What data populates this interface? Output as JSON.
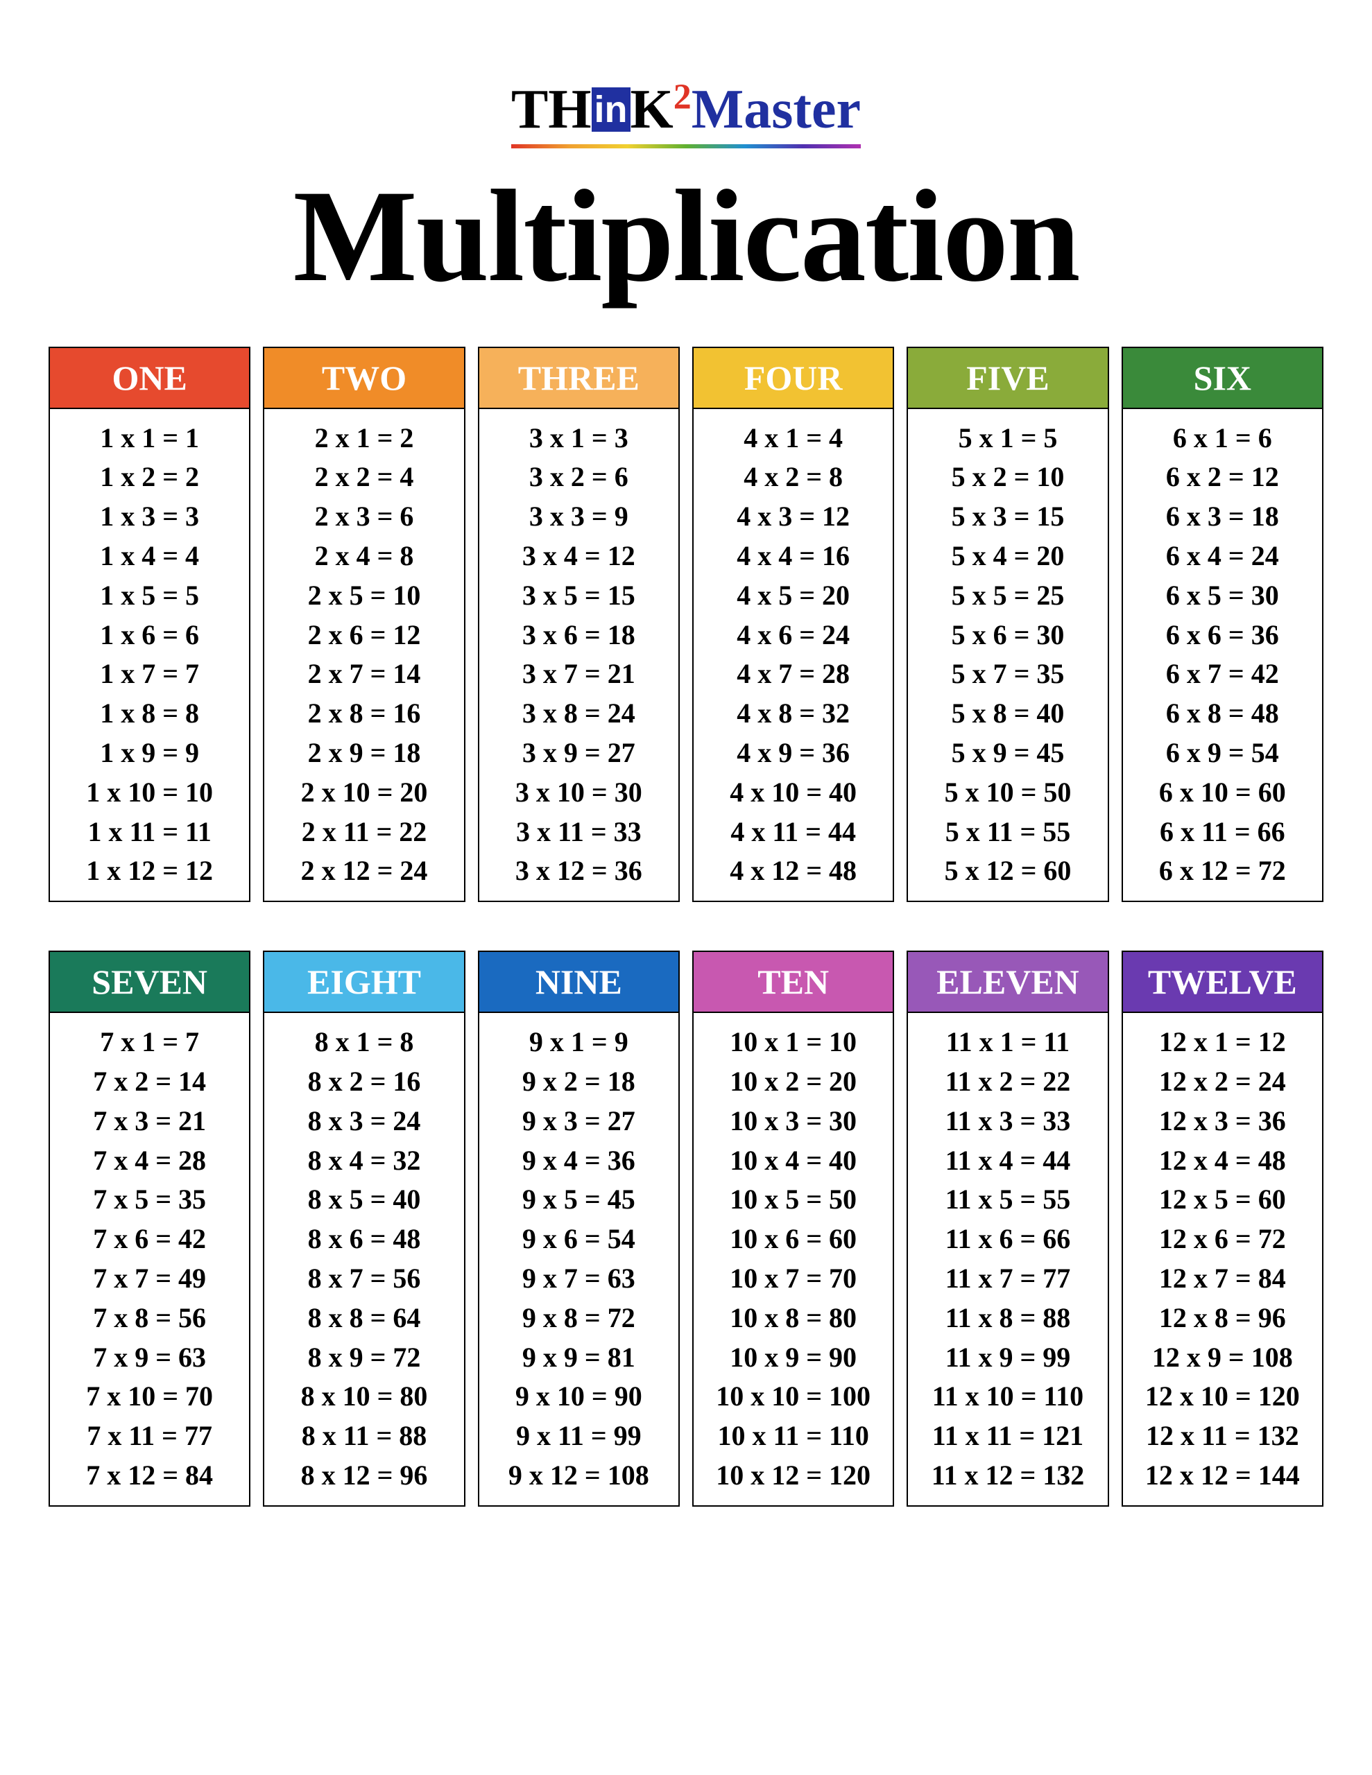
{
  "logo": {
    "th": "TH",
    "in": "in",
    "k": "K",
    "exp": "2",
    "master": "Master"
  },
  "title": "Multiplication",
  "background_color": "#ffffff",
  "text_color": "#000000",
  "border_color": "#000000",
  "header_text_color": "#ffffff",
  "title_fontsize": 190,
  "header_fontsize": 50,
  "row_fontsize": 40,
  "grid_columns": 6,
  "grid_rows": 2,
  "tables": [
    {
      "label": "ONE",
      "color": "#e64a2e",
      "base": 1
    },
    {
      "label": "TWO",
      "color": "#f08c28",
      "base": 2
    },
    {
      "label": "THREE",
      "color": "#f6b15a",
      "base": 3
    },
    {
      "label": "FOUR",
      "color": "#f2c232",
      "base": 4
    },
    {
      "label": "FIVE",
      "color": "#8aab3a",
      "base": 5
    },
    {
      "label": "SIX",
      "color": "#3a8a3a",
      "base": 6
    },
    {
      "label": "SEVEN",
      "color": "#1a7a5a",
      "base": 7
    },
    {
      "label": "EIGHT",
      "color": "#4ab8e8",
      "base": 8
    },
    {
      "label": "NINE",
      "color": "#1a6ac0",
      "base": 9
    },
    {
      "label": "TEN",
      "color": "#c858b0",
      "base": 10
    },
    {
      "label": "ELEVEN",
      "color": "#9858b8",
      "base": 11
    },
    {
      "label": "TWELVE",
      "color": "#6a3ab0",
      "base": 12
    }
  ],
  "multipliers": [
    1,
    2,
    3,
    4,
    5,
    6,
    7,
    8,
    9,
    10,
    11,
    12
  ]
}
